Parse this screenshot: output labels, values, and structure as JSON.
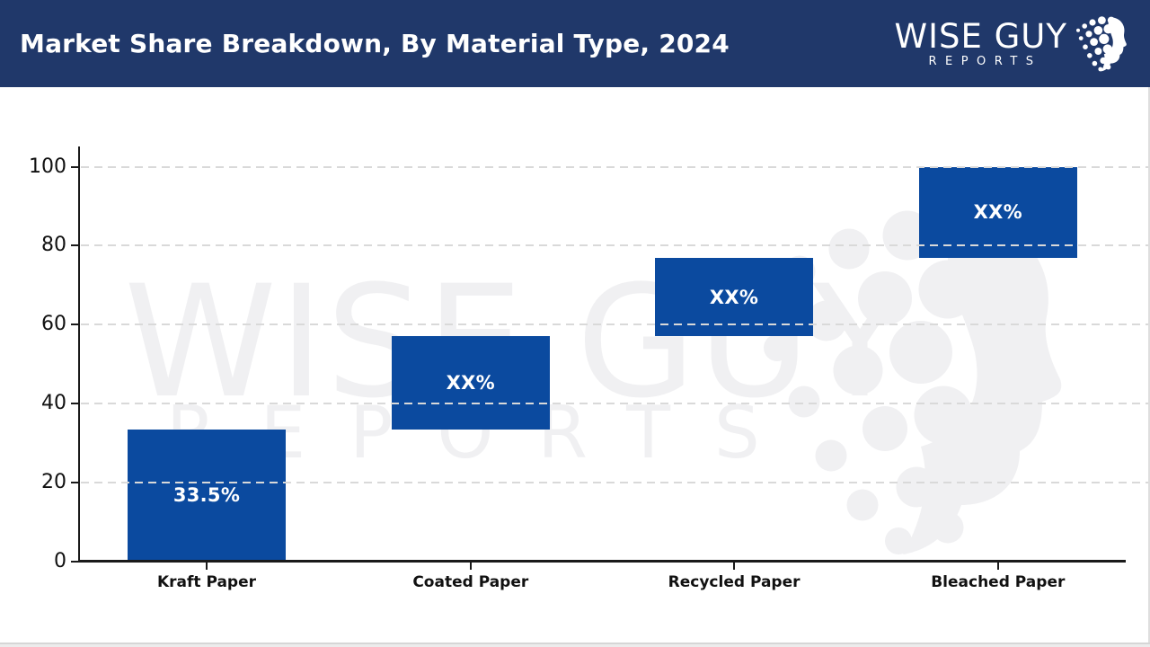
{
  "header": {
    "title": "Market Share Breakdown, By Material Type, 2024",
    "background_color": "#20386a",
    "logo": {
      "wordmark": "WISE GUY",
      "subtext": "REPORTS"
    }
  },
  "watermark": {
    "line1": "WISE GUY",
    "line2": "REPORTS",
    "color": "#f0f0f2"
  },
  "chart_data": {
    "type": "bar",
    "subtype": "waterfall",
    "title": "Market Share Breakdown, By Material Type, 2024",
    "categories": [
      "Kraft Paper",
      "Coated Paper",
      "Recycled Paper",
      "Bleached Paper"
    ],
    "segments": [
      {
        "category": "Kraft Paper",
        "start": 0,
        "end": 33.5,
        "label": "33.5%"
      },
      {
        "category": "Coated Paper",
        "start": 33.5,
        "end": 57,
        "label": "XX%"
      },
      {
        "category": "Recycled Paper",
        "start": 57,
        "end": 77,
        "label": "XX%"
      },
      {
        "category": "Bleached Paper",
        "start": 77,
        "end": 100,
        "label": "XX%"
      }
    ],
    "y_ticks": [
      "0",
      "20",
      "40",
      "60",
      "80",
      "100"
    ],
    "ylim": [
      0,
      105
    ],
    "xlabel": "",
    "ylabel": "",
    "grid": "horizontal-dashed-over-bars",
    "legend": "none",
    "bar_color": "#0b4a9f",
    "bar_label_color": "#ffffff",
    "axis_color": "#1a1a1a",
    "gridline_color": "#d9d9d9"
  }
}
